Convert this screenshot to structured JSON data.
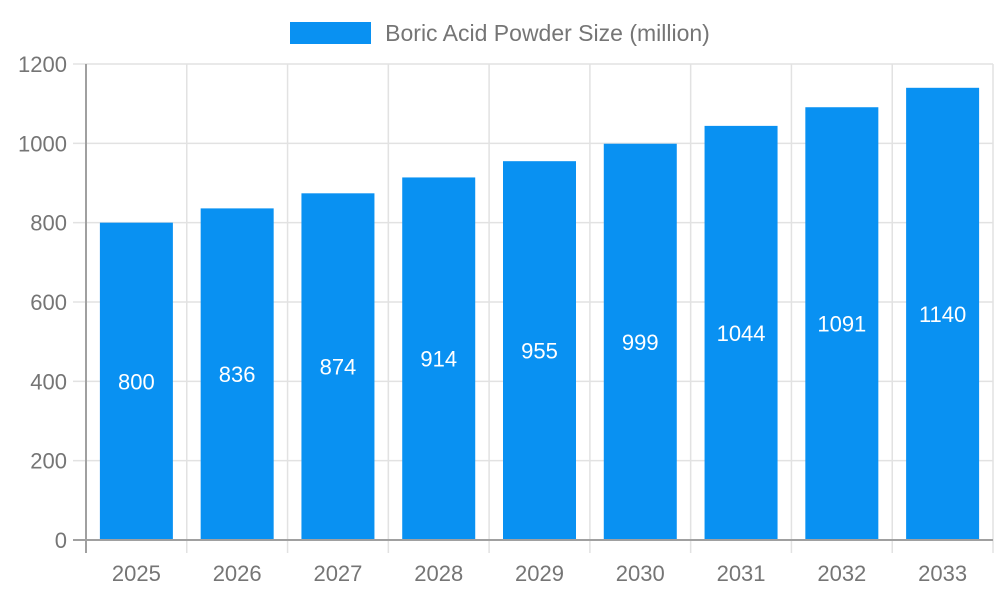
{
  "legend": {
    "label": "Boric Acid Powder Size (million)"
  },
  "chart_data": {
    "type": "bar",
    "title": "Boric Acid Powder Size (million)",
    "categories": [
      "2025",
      "2026",
      "2027",
      "2028",
      "2029",
      "2030",
      "2031",
      "2032",
      "2033"
    ],
    "series": [
      {
        "name": "Boric Acid Powder Size (million)",
        "values": [
          800,
          836,
          874,
          914,
          955,
          999,
          1044,
          1091,
          1140
        ]
      }
    ],
    "xlabel": "",
    "ylabel": "",
    "ylim": [
      0,
      1200
    ],
    "yticks": [
      0,
      200,
      400,
      600,
      800,
      1000,
      1200
    ],
    "grid": true,
    "legend_position": "top",
    "bar_value_labels": "inside-center"
  },
  "colors": {
    "bar": "#0991F2",
    "grid": "#E2E2E2",
    "axis": "#A0A0A0",
    "text": "#757575",
    "bar_label": "#FFFFFF",
    "background": "#FFFFFF"
  }
}
